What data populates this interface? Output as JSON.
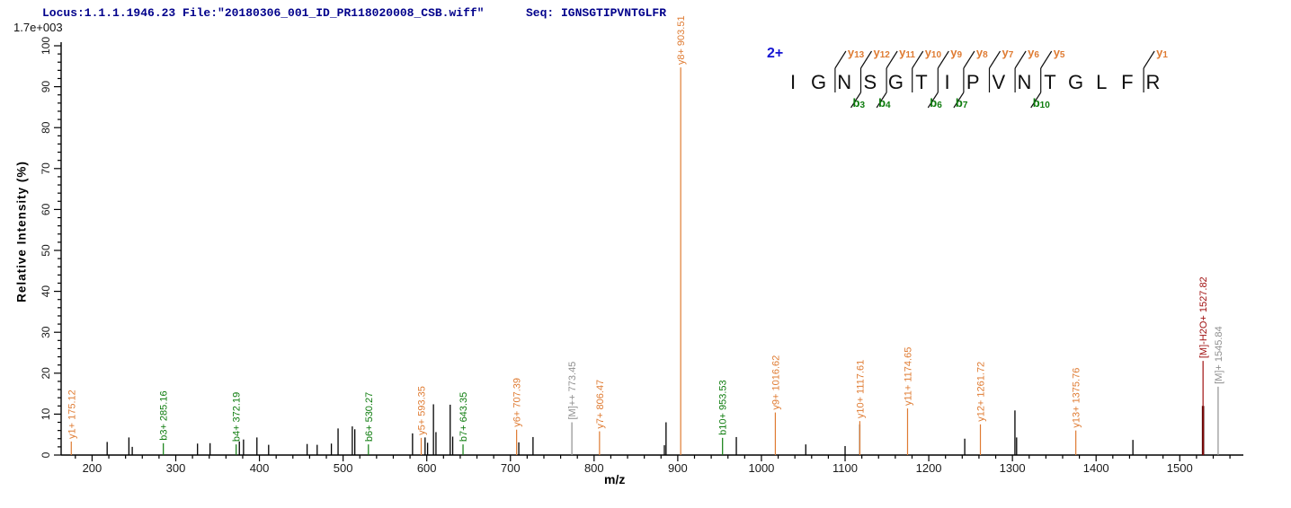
{
  "header": {
    "locus_file": "Locus:1.1.1.1946.23 File:\"20180306_001_ID_PR118020008_CSB.wiff\"",
    "seq_label": "Seq: IGNSGTIPVNTGLFR",
    "base_peak_intensity": "1.7e+003"
  },
  "axes": {
    "x_label": "m/z",
    "y_label": "Relative  Intensity (%)",
    "x_min": 163,
    "x_max": 1576,
    "y_min": 0,
    "y_max": 100,
    "x_major_step": 100,
    "x_minor_step": 20,
    "y_major_step": 10,
    "y_minor_step": 2,
    "x_first_major": 200,
    "x_last_major": 1500
  },
  "peptide": {
    "charge_label": "2+",
    "sequence": "IGNSGTIPVNTGLFR",
    "residues": [
      "I",
      "G",
      "N",
      "S",
      "G",
      "T",
      "I",
      "P",
      "V",
      "N",
      "T",
      "G",
      "L",
      "F",
      "R"
    ],
    "y_ions": [
      {
        "name": "y",
        "num": "13",
        "boundary": 2
      },
      {
        "name": "y",
        "num": "12",
        "boundary": 3
      },
      {
        "name": "y",
        "num": "11",
        "boundary": 4
      },
      {
        "name": "y",
        "num": "10",
        "boundary": 5
      },
      {
        "name": "y",
        "num": "9",
        "boundary": 6
      },
      {
        "name": "y",
        "num": "8",
        "boundary": 7
      },
      {
        "name": "y",
        "num": "7",
        "boundary": 8
      },
      {
        "name": "y",
        "num": "6",
        "boundary": 9
      },
      {
        "name": "y",
        "num": "5",
        "boundary": 10
      },
      {
        "name": "y",
        "num": "1",
        "boundary": 14
      }
    ],
    "b_ions": [
      {
        "name": "b",
        "num": "3",
        "boundary": 3
      },
      {
        "name": "b",
        "num": "4",
        "boundary": 4
      },
      {
        "name": "b",
        "num": "6",
        "boundary": 6
      },
      {
        "name": "b",
        "num": "7",
        "boundary": 7
      },
      {
        "name": "b",
        "num": "10",
        "boundary": 10
      }
    ]
  },
  "colors": {
    "y_ion": "#DF7B32",
    "b_ion": "#0E7C0E",
    "precursor": "#909090",
    "neutral_loss": "#A01010",
    "dark_peak": "#3A0000",
    "peak": "#000000",
    "header_text": "#00008B",
    "charge_text": "#1414D2",
    "axis": "#000000"
  },
  "chart_data": {
    "type": "bar",
    "subtype": "centroided MS/MS fragmentation spectrum",
    "title": "",
    "xlabel": "m/z",
    "ylabel": "Relative Intensity (%)",
    "xlim": [
      163,
      1576
    ],
    "ylim": [
      0,
      100
    ],
    "grid": false,
    "base_peak": {
      "mz": 903.51,
      "intensity_label": "1.7e+003"
    },
    "annotated_peaks": [
      {
        "label": "y1+ 175.12",
        "mz": 175.12,
        "intensity_pct": 3.3,
        "series": "y"
      },
      {
        "label": "b3+ 285.16",
        "mz": 285.16,
        "intensity_pct": 2.9,
        "series": "b"
      },
      {
        "label": "b4+ 372.19",
        "mz": 372.19,
        "intensity_pct": 2.6,
        "series": "b"
      },
      {
        "label": "b6+ 530.27",
        "mz": 530.27,
        "intensity_pct": 2.6,
        "series": "b"
      },
      {
        "label": "y5+ 593.35",
        "mz": 593.35,
        "intensity_pct": 4.2,
        "series": "y"
      },
      {
        "label": "b7+ 643.35",
        "mz": 643.35,
        "intensity_pct": 2.6,
        "series": "b"
      },
      {
        "label": "y6+ 707.39",
        "mz": 707.39,
        "intensity_pct": 6.2,
        "series": "y"
      },
      {
        "label": "[M]++ 773.45",
        "mz": 773.45,
        "intensity_pct": 8.0,
        "series": "precursor"
      },
      {
        "label": "y7+ 806.47",
        "mz": 806.47,
        "intensity_pct": 5.8,
        "series": "y"
      },
      {
        "label": "y8+ 903.51",
        "mz": 903.51,
        "intensity_pct": 94.7,
        "series": "y"
      },
      {
        "label": "b10+ 953.53",
        "mz": 953.53,
        "intensity_pct": 4.2,
        "series": "b"
      },
      {
        "label": "y9+ 1016.62",
        "mz": 1016.62,
        "intensity_pct": 10.4,
        "series": "y"
      },
      {
        "label": "y10+ 1117.61",
        "mz": 1117.61,
        "intensity_pct": 8.3,
        "series": "y"
      },
      {
        "label": "y11+ 1174.65",
        "mz": 1174.65,
        "intensity_pct": 11.4,
        "series": "y"
      },
      {
        "label": "y12+ 1261.72",
        "mz": 1261.72,
        "intensity_pct": 7.5,
        "series": "y"
      },
      {
        "label": "y13+ 1375.76",
        "mz": 1375.76,
        "intensity_pct": 6.0,
        "series": "y"
      },
      {
        "label": "[M]-H2O+ 1527.82",
        "mz": 1527.82,
        "intensity_pct": 23.0,
        "series": "neutral_loss",
        "dark_peak_pct": 12.0
      },
      {
        "label": "[M]+ 1545.84",
        "mz": 1545.84,
        "intensity_pct": 16.7,
        "series": "precursor"
      }
    ],
    "unannotated_peaks": {
      "mz": [
        218,
        244,
        248,
        326,
        341,
        376,
        381,
        397,
        411,
        457,
        469,
        486,
        494,
        511,
        514,
        583,
        598,
        601,
        608,
        611,
        628,
        631,
        710,
        727,
        884,
        886,
        970,
        1053,
        1100,
        1117.6,
        1243,
        1303,
        1305,
        1444
      ],
      "intensity_pct": [
        3.2,
        4.3,
        2.0,
        2.8,
        2.9,
        3.3,
        3.8,
        4.3,
        2.5,
        2.7,
        2.5,
        2.8,
        6.5,
        7.0,
        6.3,
        5.3,
        4.3,
        3.0,
        12.4,
        5.6,
        12.3,
        4.5,
        3.1,
        4.4,
        2.4,
        8.0,
        4.4,
        2.6,
        2.2,
        7.5,
        4.0,
        10.9,
        4.3,
        3.7
      ]
    }
  }
}
